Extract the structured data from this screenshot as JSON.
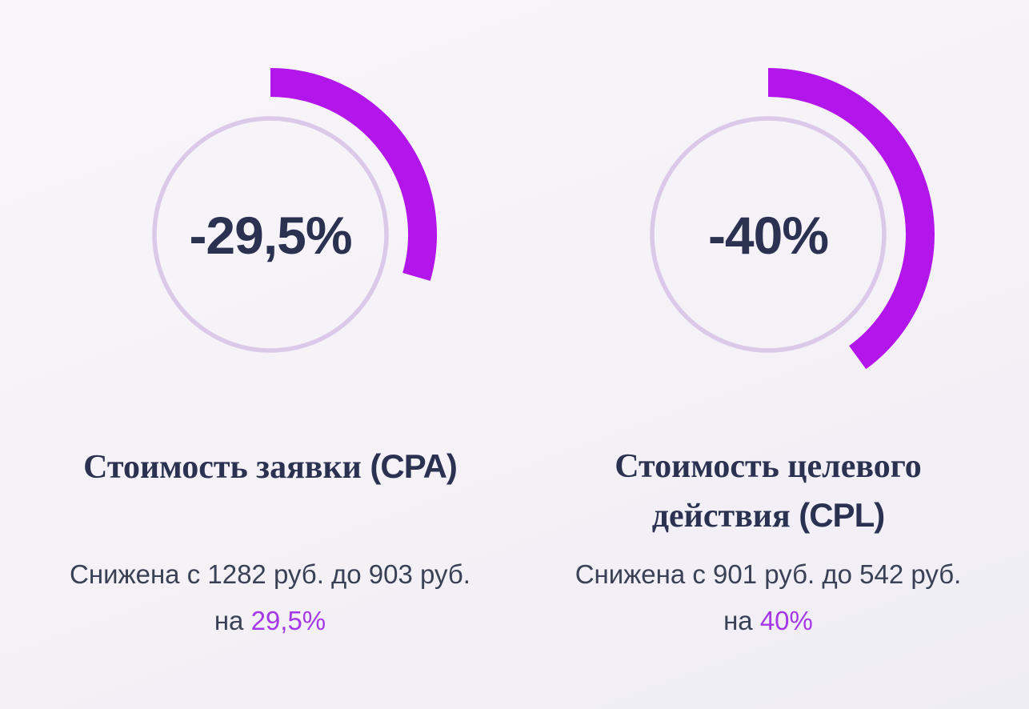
{
  "colors": {
    "arc": "#B316EB",
    "ring": "#DCC9EA",
    "heading": "#2B3150",
    "body_text": "#3A4156",
    "accent_text": "#A637E8",
    "background": "#F5F3F8"
  },
  "cards": [
    {
      "gauge": {
        "value_label": "-29,5%",
        "percent": 29.5
      },
      "title_lines": [
        {
          "text": "Стоимость заявки",
          "latin": "(CPA)"
        }
      ],
      "description": {
        "line1": "Снижена с 1282 руб. до 903 руб.",
        "line2_prefix": "на",
        "line2_value": "29,5%"
      }
    },
    {
      "gauge": {
        "value_label": "-40%",
        "percent": 40
      },
      "title_lines": [
        {
          "text": "Стоимость целевого",
          "latin": ""
        },
        {
          "text": "действия",
          "latin": "(CPL)"
        }
      ],
      "description": {
        "line1": "Снижена с 901 руб. до 542 руб.",
        "line2_prefix": "на",
        "line2_value": "40%"
      }
    }
  ],
  "chart_data": [
    {
      "type": "gauge",
      "title": "Стоимость заявки (CPA)",
      "center_label": "-29,5%",
      "value": -29.5,
      "unit": "%",
      "arc_fraction_of_circle": 0.295,
      "arc_start_angle_deg": -90,
      "before": "1282 руб.",
      "after": "903 руб.",
      "annotation": "Снижена с 1282 руб. до 903 руб. на 29,5%"
    },
    {
      "type": "gauge",
      "title": "Стоимость целевого действия (CPL)",
      "center_label": "-40%",
      "value": -40,
      "unit": "%",
      "arc_fraction_of_circle": 0.4,
      "arc_start_angle_deg": -90,
      "before": "901 руб.",
      "after": "542 руб.",
      "annotation": "Снижена с 901 руб. до 542 руб. на 40%"
    }
  ]
}
